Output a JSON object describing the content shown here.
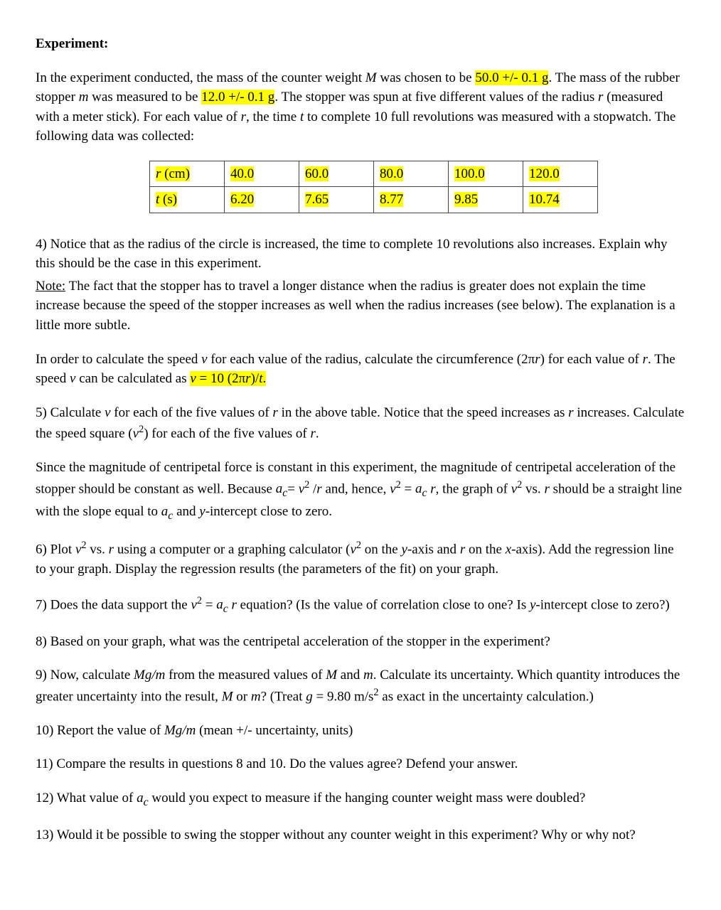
{
  "heading": "Experiment:",
  "intro": {
    "p1a": "In the experiment conducted, the mass of the counter weight ",
    "M": "M",
    "p1b": " was chosen to be ",
    "mass_M": "50.0 +/- 0.1 g",
    "p1c": ". The mass of the rubber stopper ",
    "m": "m",
    "p1d": " was measured to be ",
    "mass_m": "12.0 +/- 0.1 g",
    "p1e": ". The stopper was spun at five different values of the radius ",
    "r": "r",
    "p1f": " (measured with a meter stick). For each value of ",
    "p1g": ", the time ",
    "t": "t",
    "p1h": " to complete 10 full revolutions was measured with a stopwatch. The following data was collected:"
  },
  "table": {
    "header_r": "r",
    "header_r_unit": " (cm)",
    "header_t": "t",
    "header_t_unit": " (s)",
    "r_vals": [
      "40.0",
      "60.0",
      "80.0",
      "100.0",
      "120.0"
    ],
    "t_vals": [
      "6.20",
      "7.65",
      "8.77",
      "9.85",
      "10.74"
    ]
  },
  "q4": {
    "a": "4) Notice that as the radius of the circle is increased, the time to complete 10 revolutions also increases. Explain why this should be the case in this experiment.",
    "note_label": "Note:",
    "note_text": " The fact that the stopper has to travel a longer distance when the radius is greater does not explain the time increase because the speed of the stopper increases as well when the radius increases (see below). The explanation is a little more subtle."
  },
  "speed": {
    "a": "In order to calculate the speed ",
    "v": "v",
    "b": " for each value of the radius, calculate the circumference (2π",
    "c": ") for each value of ",
    "d": ". The speed ",
    "e": " can be calculated as ",
    "formula_v": "v",
    "formula_rest": " = 10 (2π",
    "formula_r": "r",
    "formula_end": ")/",
    "formula_t": "t",
    "formula_dot": "."
  },
  "q5": {
    "a": "5) Calculate ",
    "b": " for each of the five values of ",
    "c": " in the above table. Notice that the speed increases as ",
    "d": " increases. Calculate the speed square (",
    "e": ") for each of the five values of "
  },
  "since": {
    "a": "Since the magnitude of centripetal force is constant in this experiment, the magnitude of centripetal acceleration of the stopper should be constant as well. Because ",
    "eq1a": "a",
    "eq1b": "= ",
    "eq1c": " /",
    "mid": " and, hence, ",
    "eq2a": " = ",
    "eq2b": " ",
    "after": ", the graph of ",
    "after2": " vs. ",
    "after3": " should be a straight line with the slope equal to ",
    "after4": " and ",
    "yint": "y",
    "after5": "-intercept close to zero."
  },
  "q6": {
    "a": "6) Plot ",
    "b": " vs. ",
    "c": " using a computer or a graphing calculator (",
    "d": " on the ",
    "y": "y",
    "e": "-axis and ",
    "f": " on the ",
    "x": "x",
    "g": "-axis). Add the regression line to your graph. Display the regression results (the parameters of the fit) on your graph."
  },
  "q7": {
    "a": "7) Does the data support the ",
    "b": " = ",
    "c": " ",
    "d": " equation? (Is the value of correlation close to one? Is ",
    "e": "-intercept close to zero?)"
  },
  "q8": "8) Based on your graph, what was the centripetal acceleration of the stopper in the experiment?",
  "q9": {
    "a": "9) Now, calculate ",
    "mgm": "Mg/m",
    "b": " from the measured values of ",
    "c": " and ",
    "d": ". Calculate its uncertainty. Which quantity introduces the greater uncertainty into the result, ",
    "e": " or ",
    "f": "? (Treat ",
    "g_eq": "g",
    "g_val": " = 9.80 m/s",
    "h": " as exact in the uncertainty calculation.)"
  },
  "q10": {
    "a": "10) Report the value of ",
    "b": " (mean +/- uncertainty, units)"
  },
  "q11": "11) Compare the results in questions 8 and 10. Do the values agree? Defend your answer.",
  "q12": {
    "a": "12) What value of ",
    "b": " would you expect to measure if the hanging counter weight mass were doubled?"
  },
  "q13": "13) Would it be possible to swing the stopper without any counter weight in this experiment? Why or why not?"
}
